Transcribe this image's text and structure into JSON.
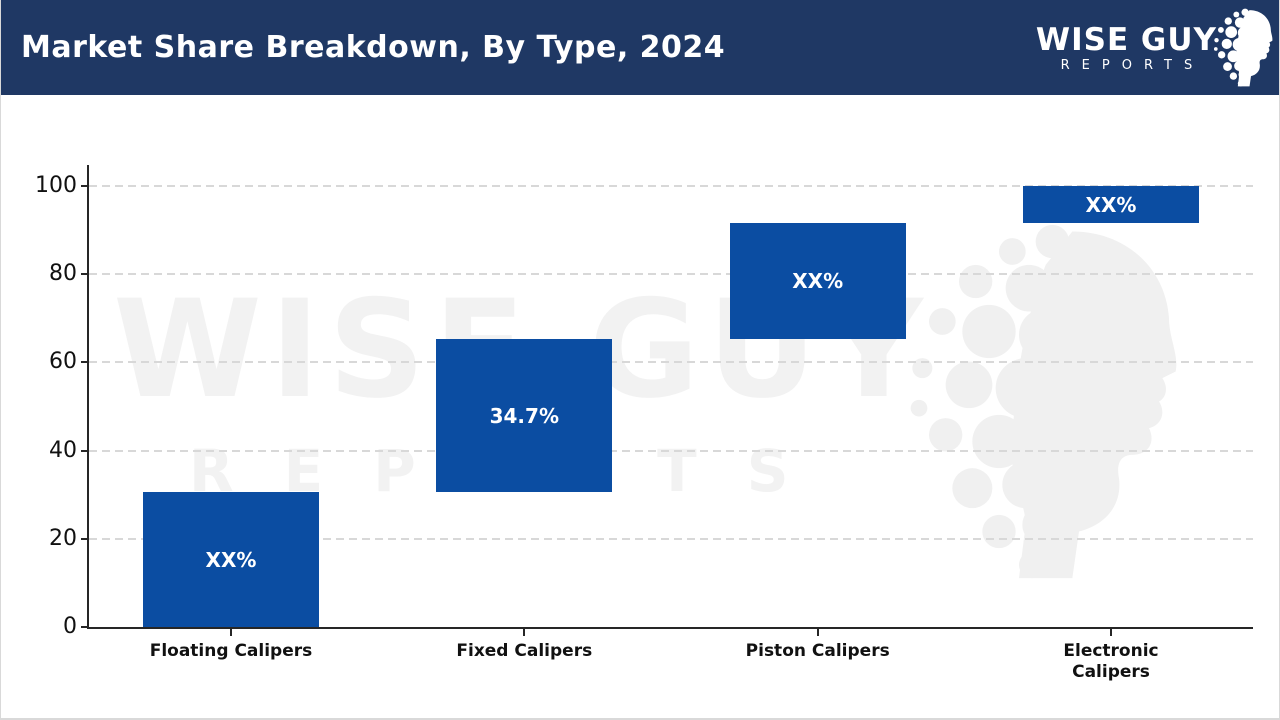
{
  "header": {
    "title": "Market Share Breakdown, By Type, 2024",
    "bg_color": "#1f3864",
    "logo": {
      "line1": "WISE GUY",
      "line2": "REPORTS"
    }
  },
  "icons": {
    "logo_head": "dotted-face-profile",
    "watermark_head": "dotted-face-profile"
  },
  "watermark": {
    "line1": "WISE GUY",
    "line2": "REPORTS"
  },
  "chart_data": {
    "type": "bar",
    "variant": "waterfall",
    "title": "Market Share Breakdown, By Type, 2024",
    "categories": [
      "Floating Calipers",
      "Fixed Calipers",
      "Piston Calipers",
      "Electronic Calipers"
    ],
    "segments": [
      {
        "category": "Floating Calipers",
        "start": 0,
        "end": 30.5,
        "label": "XX%"
      },
      {
        "category": "Fixed Calipers",
        "start": 30.5,
        "end": 65.2,
        "label": "34.7%"
      },
      {
        "category": "Piston Calipers",
        "start": 65.2,
        "end": 91.5,
        "label": "XX%"
      },
      {
        "category": "Electronic Calipers",
        "start": 91.5,
        "end": 100,
        "label": "XX%"
      }
    ],
    "values": [
      30.5,
      34.7,
      26.3,
      8.5
    ],
    "xlabel": "",
    "ylabel": "",
    "ylim": [
      0,
      105
    ],
    "yticks": [
      0,
      20,
      40,
      60,
      80,
      100
    ],
    "grid": "horizontal-dashed",
    "legend": "none",
    "bar_color": "#0b4da2",
    "bar_label_color": "#ffffff",
    "grid_color": "#d8d8d8",
    "axis_color": "#262626",
    "watermark_text": "WISE GUY REPORTS"
  }
}
